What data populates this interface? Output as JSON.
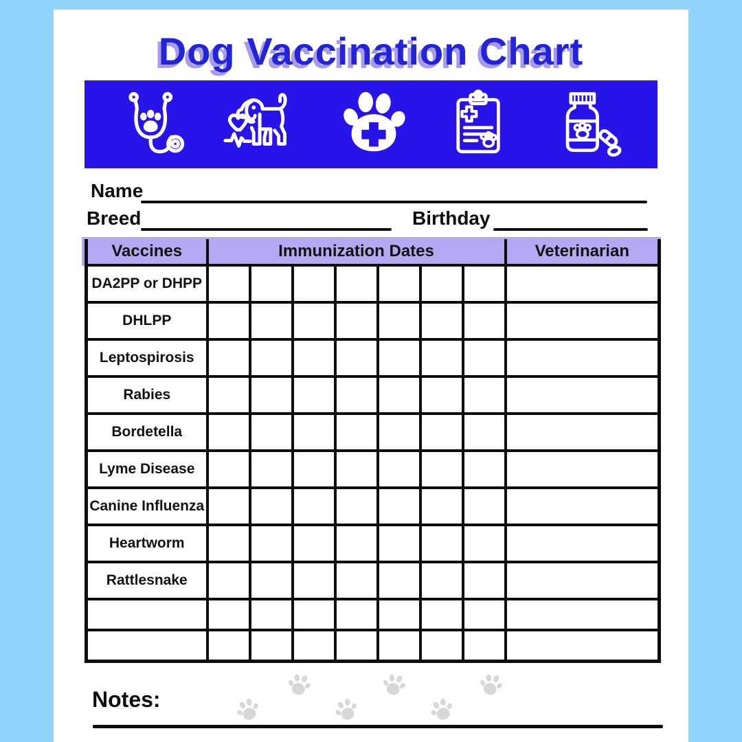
{
  "title": "Dog Vaccination Chart",
  "colors": {
    "background": "#92d5fc",
    "page": "#ffffff",
    "banner_blue": "#2814e8",
    "title_blue": "#2323d9",
    "title_shadow": "#a79bed",
    "header_purple": "#b4aaf4",
    "line_black": "#0d0d0d",
    "paw_trail_gray": "#d8d8d8"
  },
  "banner": {
    "icons": [
      "stethoscope-paw-icon",
      "dog-heart-ekg-icon",
      "paw-cross-icon",
      "medical-clipboard-icon",
      "medicine-bottle-pills-icon"
    ]
  },
  "fields": {
    "name_label": "Name",
    "breed_label": "Breed",
    "birthday_label": "Birthday"
  },
  "table": {
    "headers": {
      "vaccines": "Vaccines",
      "immunization_dates": "Immunization Dates",
      "veterinarian": "Veterinarian"
    },
    "date_columns": 7,
    "rows": [
      {
        "vaccine": "DA2PP or DHPP",
        "dates": [
          "",
          "",
          "",
          "",
          "",
          "",
          ""
        ],
        "veterinarian": ""
      },
      {
        "vaccine": "DHLPP",
        "dates": [
          "",
          "",
          "",
          "",
          "",
          "",
          ""
        ],
        "veterinarian": ""
      },
      {
        "vaccine": "Leptospirosis",
        "dates": [
          "",
          "",
          "",
          "",
          "",
          "",
          ""
        ],
        "veterinarian": ""
      },
      {
        "vaccine": "Rabies",
        "dates": [
          "",
          "",
          "",
          "",
          "",
          "",
          ""
        ],
        "veterinarian": ""
      },
      {
        "vaccine": "Bordetella",
        "dates": [
          "",
          "",
          "",
          "",
          "",
          "",
          ""
        ],
        "veterinarian": ""
      },
      {
        "vaccine": "Lyme Disease",
        "dates": [
          "",
          "",
          "",
          "",
          "",
          "",
          ""
        ],
        "veterinarian": ""
      },
      {
        "vaccine": "Canine Influenza",
        "dates": [
          "",
          "",
          "",
          "",
          "",
          "",
          ""
        ],
        "veterinarian": ""
      },
      {
        "vaccine": "Heartworm",
        "dates": [
          "",
          "",
          "",
          "",
          "",
          "",
          ""
        ],
        "veterinarian": ""
      },
      {
        "vaccine": "Rattlesnake",
        "dates": [
          "",
          "",
          "",
          "",
          "",
          "",
          ""
        ],
        "veterinarian": ""
      },
      {
        "vaccine": "",
        "dates": [
          "",
          "",
          "",
          "",
          "",
          "",
          ""
        ],
        "veterinarian": ""
      },
      {
        "vaccine": "",
        "dates": [
          "",
          "",
          "",
          "",
          "",
          "",
          ""
        ],
        "veterinarian": ""
      }
    ]
  },
  "notes": {
    "label": "Notes:"
  }
}
